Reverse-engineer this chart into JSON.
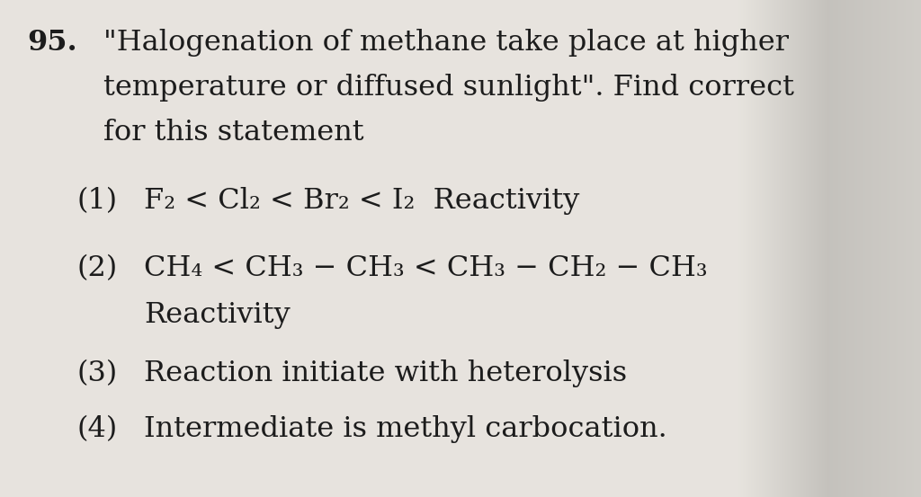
{
  "bg_color": "#e8e4de",
  "bg_color_right": "#d0cdc8",
  "text_color": "#1c1c1c",
  "figsize": [
    10.24,
    5.53
  ],
  "dpi": 100,
  "question_number": "95.",
  "title_line1": "\"Halogenation of methane take place at higher",
  "title_line2": "temperature or diffused sunlight\". Find correct",
  "title_line3": "for this statement",
  "option1_label": "(1)",
  "option1_text": "F₂ < Cl₂ < Br₂ < I₂  Reactivity",
  "option2_label": "(2)",
  "option2_line1": "CH₄ < CH₃ − CH₃ < CH₃ − CH₂ − CH₃",
  "option2_line2": "Reactivity",
  "option3_label": "(3)",
  "option3_text": "Reaction initiate with heterolysis",
  "option4_label": "(4)",
  "option4_text": "Intermediate is methyl carbocation.",
  "font_size_q": 23,
  "font_size_opt": 23,
  "font_family": "DejaVu Serif"
}
